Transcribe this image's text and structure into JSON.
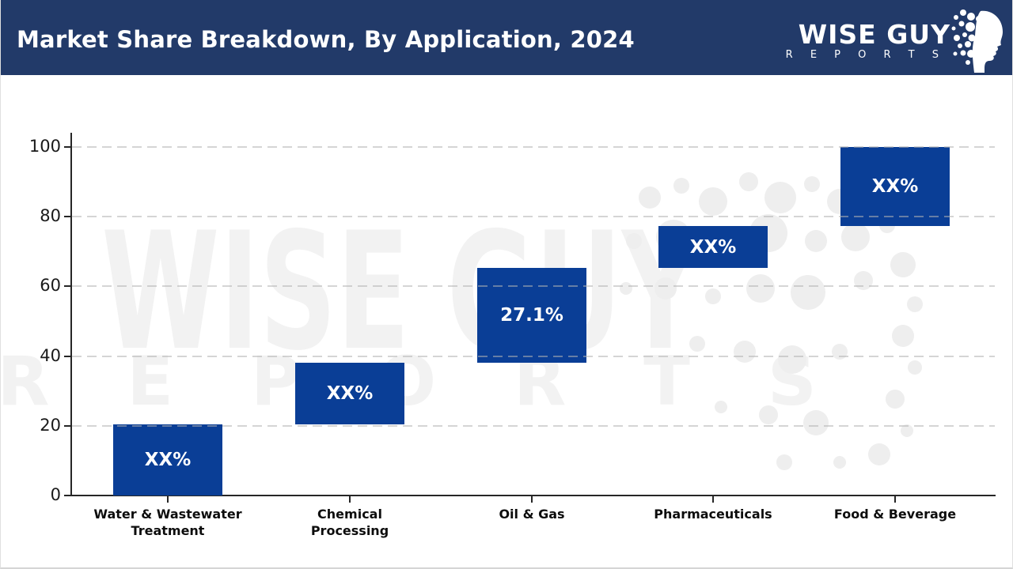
{
  "header": {
    "title": "Market Share Breakdown, By Application, 2024",
    "logo": {
      "wordmark": "WISE GUY",
      "subtext": "R E P O R T S"
    }
  },
  "watermark": {
    "wordmark": "WISE GUY",
    "subtext": "R E P O R T S"
  },
  "colors": {
    "header_bg": "#223a69",
    "bar": "#0a3e96",
    "bar_label": "#ffffff",
    "grid": "#c9c9c9",
    "axis": "#262626",
    "category_label": "#0d0d0d"
  },
  "chart_data": {
    "type": "bar",
    "subtype": "floating-waterfall-share",
    "title": "Market Share Breakdown, By Application, 2024",
    "unit": "%",
    "categories": [
      "Water & Wastewater Treatment",
      "Chemical Processing",
      "Oil & Gas",
      "Pharmaceuticals",
      "Food & Beverage"
    ],
    "segments": [
      {
        "category": "Water & Wastewater Treatment",
        "label_lines": [
          "Water & Wastewater",
          "Treatment"
        ],
        "start": 0,
        "end": 20.4,
        "share": 20.4,
        "value_label": "XX%"
      },
      {
        "category": "Chemical Processing",
        "label_lines": [
          "Chemical",
          "Processing"
        ],
        "start": 20.4,
        "end": 38.1,
        "share": 17.7,
        "value_label": "XX%"
      },
      {
        "category": "Oil & Gas",
        "label_lines": [
          "Oil & Gas"
        ],
        "start": 38.1,
        "end": 65.2,
        "share": 27.1,
        "value_label": "27.1%"
      },
      {
        "category": "Pharmaceuticals",
        "label_lines": [
          "Pharmaceuticals"
        ],
        "start": 65.2,
        "end": 77.3,
        "share": 12.1,
        "value_label": "XX%"
      },
      {
        "category": "Food & Beverage",
        "label_lines": [
          "Food & Beverage"
        ],
        "start": 77.3,
        "end": 100,
        "share": 22.7,
        "value_label": "XX%"
      }
    ],
    "ylim": [
      0,
      100
    ],
    "yticks": [
      0,
      20,
      40,
      60,
      80,
      100
    ],
    "grid": {
      "horizontal": true,
      "style": "dashed",
      "drawn_over_bars": true
    },
    "legend": "none"
  }
}
